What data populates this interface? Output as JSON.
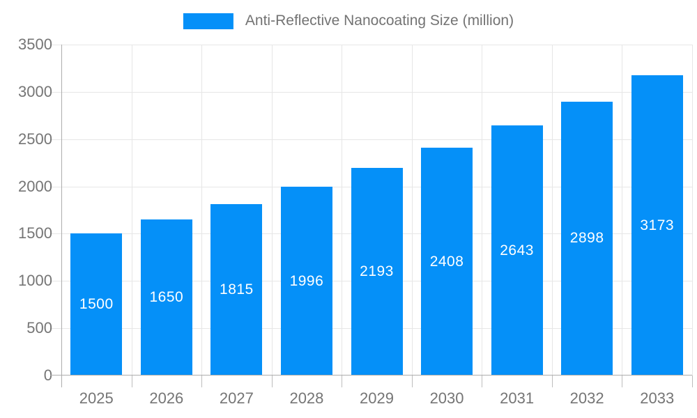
{
  "legend": {
    "label": "Anti-Reflective Nanocoating Size (million)"
  },
  "chart_data": {
    "type": "bar",
    "title": "Anti-Reflective Nanocoating Size (million)",
    "categories": [
      "2025",
      "2026",
      "2027",
      "2028",
      "2029",
      "2030",
      "2031",
      "2032",
      "2033"
    ],
    "values": [
      1500,
      1650,
      1815,
      1996,
      2193,
      2408,
      2643,
      2898,
      3173
    ],
    "xlabel": "",
    "ylabel": "",
    "ylim": [
      0,
      3500
    ],
    "ytick_step": 500,
    "grid": true,
    "legend_position": "top-center",
    "value_labels": "inside-middle-white"
  },
  "colors": {
    "bar": "#0590f8",
    "grid": "#e6e6e6",
    "axis": "#adadad",
    "tick_text": "#757575",
    "legend_text": "#737373",
    "value_label_text": "#ffffff",
    "background": "#ffffff"
  }
}
